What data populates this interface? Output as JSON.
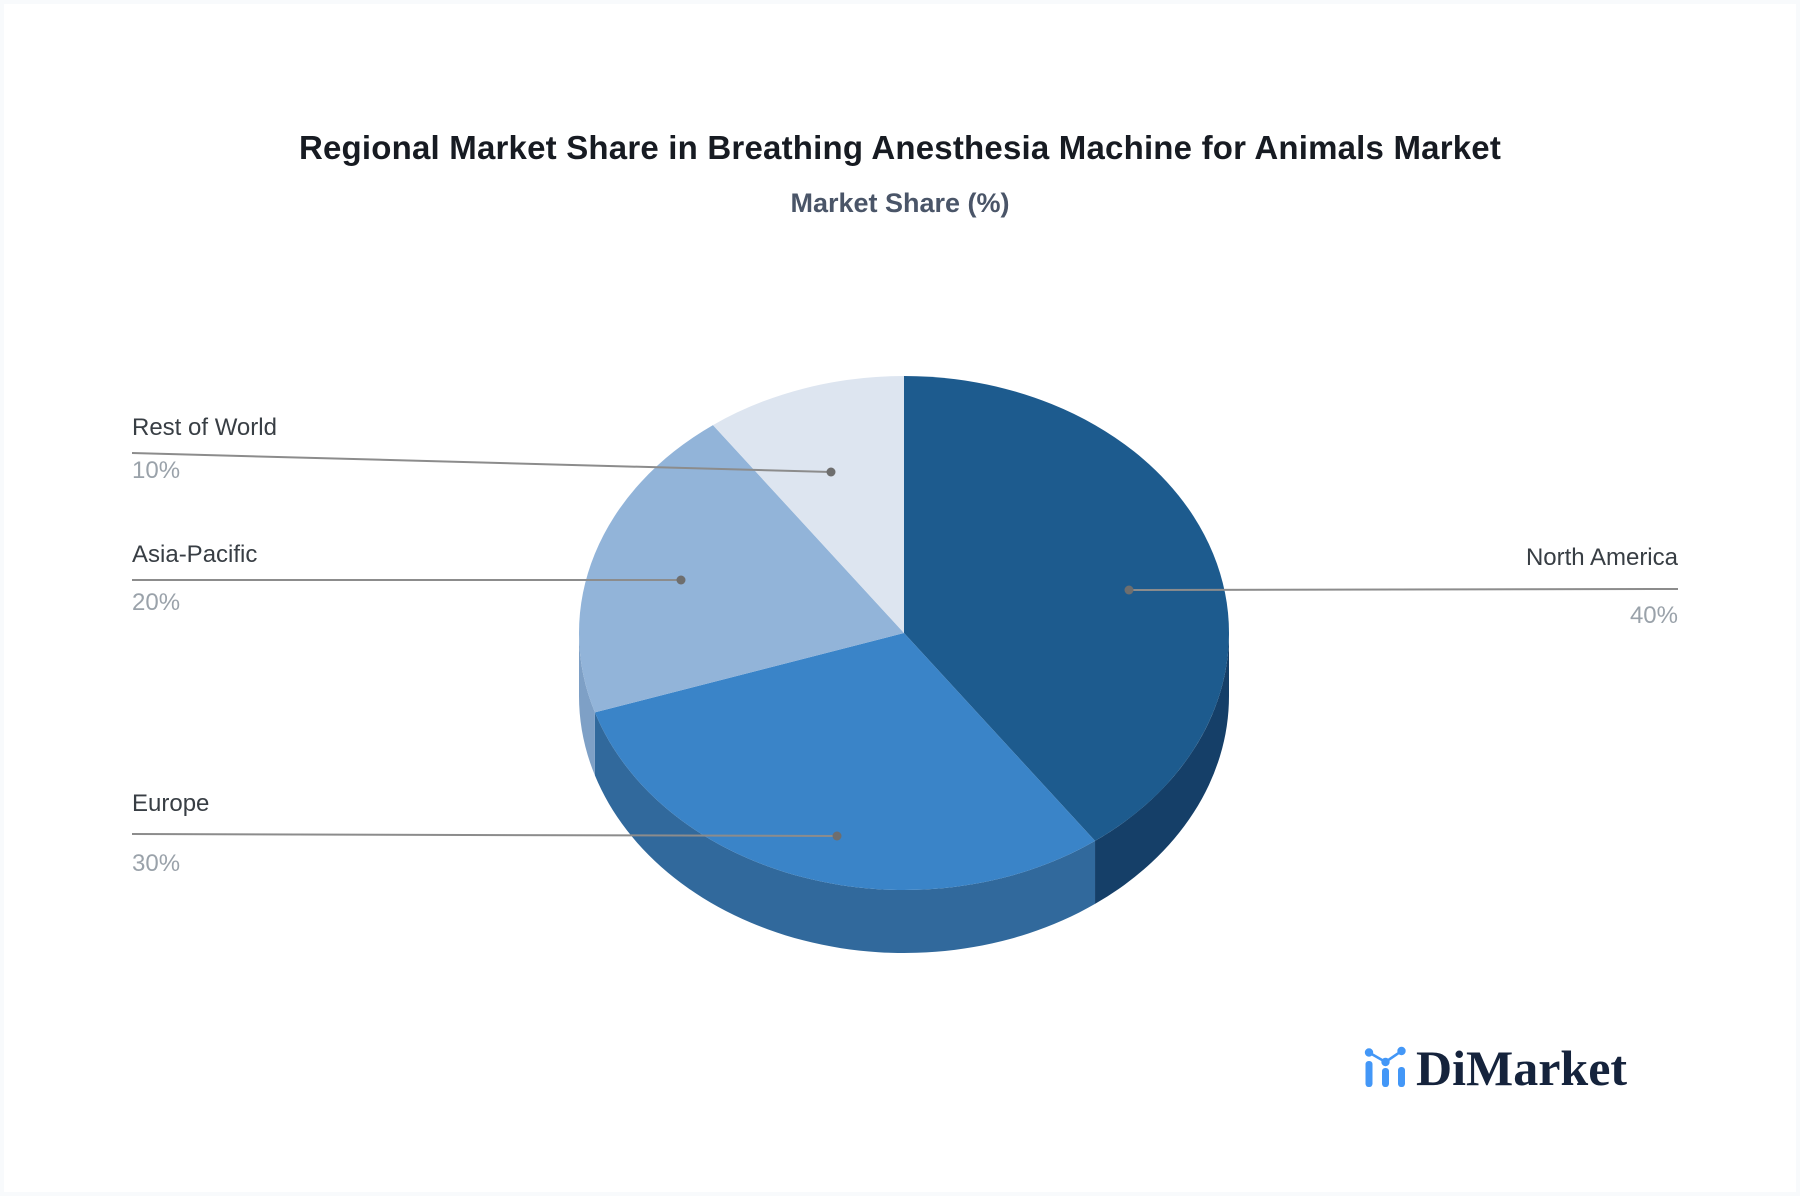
{
  "chart_data": {
    "type": "pie",
    "style": "3d",
    "title": "Regional Market Share in Breathing Anesthesia Machine for Animals Market",
    "subtitle": "Market Share (%)",
    "unit": "%",
    "start_angle": "12-oclock-clockwise",
    "legend_position": "callout-labels",
    "series": [
      {
        "name": "North America",
        "value": 40,
        "value_label": "40%",
        "top_color": "#1d5b8e",
        "side_color": "#153f68",
        "label_side": "right"
      },
      {
        "name": "Europe",
        "value": 30,
        "value_label": "30%",
        "top_color": "#3a84c8",
        "side_color": "#31699c",
        "label_side": "left"
      },
      {
        "name": "Asia-Pacific",
        "value": 20,
        "value_label": "20%",
        "top_color": "#92b4d9",
        "side_color": "#7ea0c6",
        "label_side": "left"
      },
      {
        "name": "Rest of World",
        "value": 10,
        "value_label": "10%",
        "top_color": "#dde5f0",
        "side_color": "#c2cfdf",
        "label_side": "left"
      }
    ],
    "callout_line_color": "#8c8c8c",
    "callout_dot_color": "#6e6e6e",
    "label_text_color": "#383e44",
    "value_text_color": "#9aa2aa"
  },
  "branding": {
    "logo_text": "DiMarket",
    "logo_icon": "bar-chart-trend-icon",
    "logo_icon_color": "#4397f7",
    "logo_text_color": "#15233c"
  }
}
